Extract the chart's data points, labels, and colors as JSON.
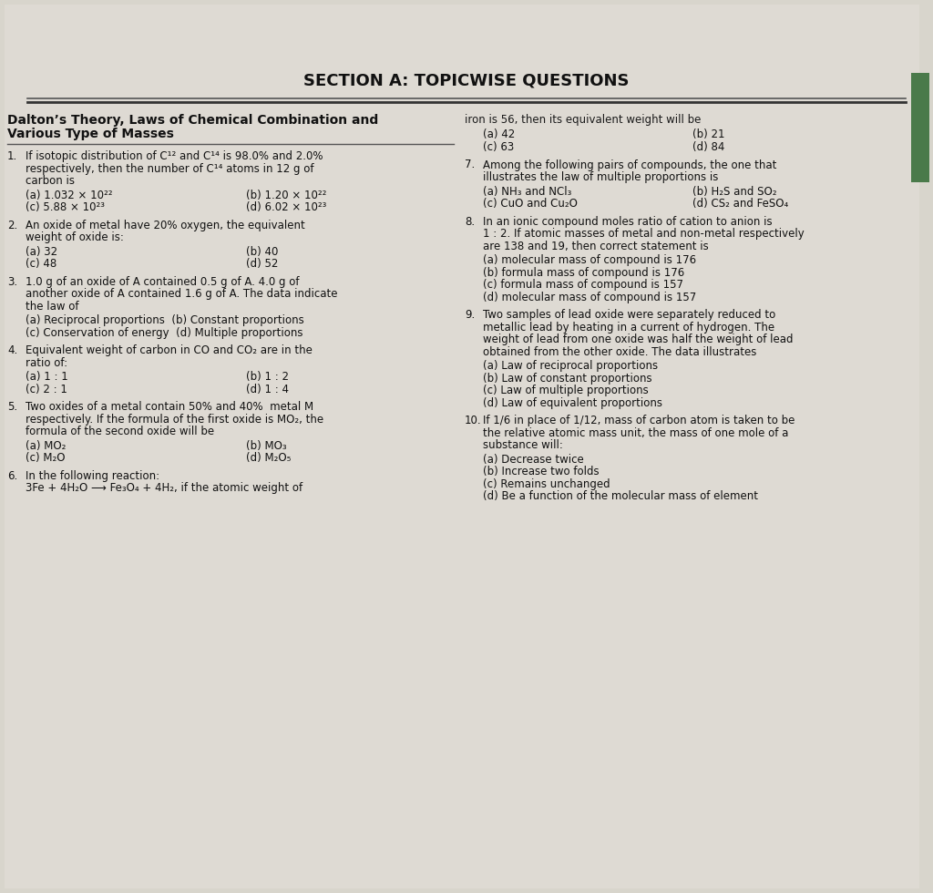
{
  "bg_color": "#d8d5cc",
  "page_color": "#e0ddd5",
  "text_color": "#1a1a1a",
  "title": "SECTION A: TOPICWISE QUESTIONS",
  "green_tab_color": "#4a7a4a",
  "left_questions": [
    {
      "num": "1.",
      "lines": [
        "If isotopic distribution of C¹² and C¹⁴ is 98.0% and 2.0%",
        "respectively, then the number of C¹⁴ atoms in 12 g of",
        "carbon is"
      ],
      "opts": [
        [
          "(a) 1.032 × 10²²",
          "(b) 1.20 × 10²²"
        ],
        [
          "(c) 5.88 × 10²³",
          "(d) 6.02 × 10²³"
        ]
      ]
    },
    {
      "num": "2.",
      "lines": [
        "An oxide of metal have 20% oxygen, the equivalent",
        "weight of oxide is:"
      ],
      "opts": [
        [
          "(a) 32",
          "(b) 40"
        ],
        [
          "(c) 48",
          "(d) 52"
        ]
      ]
    },
    {
      "num": "3.",
      "lines": [
        "1.0 g of an oxide of A contained 0.5 g of A. 4.0 g of",
        "another oxide of A contained 1.6 g of A. The data indicate",
        "the law of"
      ],
      "opts": [
        [
          "(a) Reciprocal proportions  (b) Constant proportions"
        ],
        [
          "(c) Conservation of energy  (d) Multiple proportions"
        ]
      ]
    },
    {
      "num": "4.",
      "lines": [
        "Equivalent weight of carbon in CO and CO₂ are in the",
        "ratio of:"
      ],
      "opts": [
        [
          "(a) 1 : 1",
          "(b) 1 : 2"
        ],
        [
          "(c) 2 : 1",
          "(d) 1 : 4"
        ]
      ]
    },
    {
      "num": "5.",
      "lines": [
        "Two oxides of a metal contain 50% and 40%  metal M",
        "respectively. If the formula of the first oxide is MO₂, the",
        "formula of the second oxide will be"
      ],
      "opts": [
        [
          "(a) MO₂",
          "(b) MO₃"
        ],
        [
          "(c) M₂O",
          "(d) M₂O₅"
        ]
      ]
    },
    {
      "num": "6.",
      "lines": [
        "In the following reaction:",
        "3Fe + 4H₂O ⟶ Fe₃O₄ + 4H₂, if the atomic weight of"
      ],
      "opts": []
    }
  ],
  "right_questions": [
    {
      "num": "",
      "lines": [
        "iron is 56, then its equivalent weight will be"
      ],
      "opts": [
        [
          "(a) 42",
          "(b) 21"
        ],
        [
          "(c) 63",
          "(d) 84"
        ]
      ]
    },
    {
      "num": "7.",
      "lines": [
        "Among the following pairs of compounds, the one that",
        "illustrates the law of multiple proportions is"
      ],
      "opts": [
        [
          "(a) NH₃ and NCl₃",
          "(b) H₂S and SO₂"
        ],
        [
          "(c) CuO and Cu₂O",
          "(d) CS₂ and FeSO₄"
        ]
      ]
    },
    {
      "num": "8.",
      "lines": [
        "In an ionic compound moles ratio of cation to anion is",
        "1 : 2. If atomic masses of metal and non-metal respectively",
        "are 138 and 19, then correct statement is"
      ],
      "opts": [
        [
          "(a) molecular mass of compound is 176"
        ],
        [
          "(b) formula mass of compound is 176"
        ],
        [
          "(c) formula mass of compound is 157"
        ],
        [
          "(d) molecular mass of compound is 157"
        ]
      ]
    },
    {
      "num": "9.",
      "lines": [
        "Two samples of lead oxide were separately reduced to",
        "metallic lead by heating in a current of hydrogen. The",
        "weight of lead from one oxide was half the weight of lead",
        "obtained from the other oxide. The data illustrates"
      ],
      "opts": [
        [
          "(a) Law of reciprocal proportions"
        ],
        [
          "(b) Law of constant proportions"
        ],
        [
          "(c) Law of multiple proportions"
        ],
        [
          "(d) Law of equivalent proportions"
        ]
      ]
    },
    {
      "num": "10.",
      "lines": [
        "If 1/6 in place of 1/12, mass of carbon atom is taken to be",
        "the relative atomic mass unit, the mass of one mole of a",
        "substance will:"
      ],
      "opts": [
        [
          "(a) Decrease twice"
        ],
        [
          "(b) Increase two folds"
        ],
        [
          "(c) Remains unchanged"
        ],
        [
          "(d) Be a function of the molecular mass of element"
        ]
      ]
    }
  ],
  "subtitle_line1": "Dalton’s Theory, Laws of Chemical Combination and",
  "subtitle_line2": "Various Type of Masses"
}
